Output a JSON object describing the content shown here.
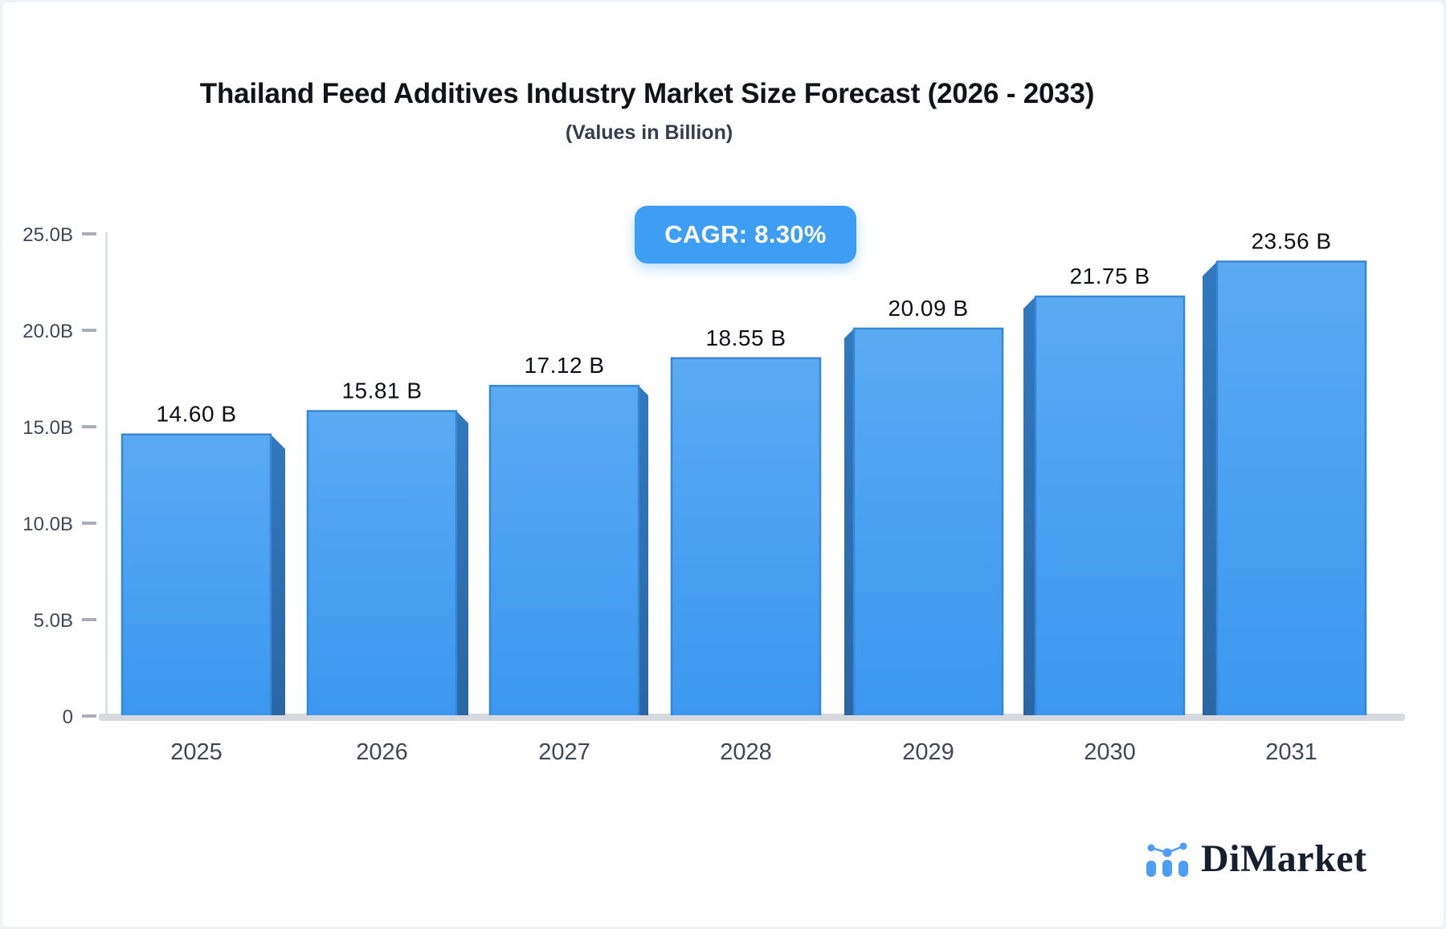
{
  "header": {
    "title": "Thailand Feed Additives Industry Market Size Forecast (2026 - 2033)",
    "subtitle": "(Values in Billion)",
    "cagr_label": "CAGR: 8.30%"
  },
  "brand": {
    "name": "DiMarket",
    "icon": "mini-bar-line-chart-icon"
  },
  "colors": {
    "bar_top": "#5BAAF2",
    "bar_bottom": "#3B97F0",
    "bar_side_top": "#3179BE",
    "bar_side_bottom": "#2A66A4",
    "bar_edge": "#3787D6",
    "badge_bg": "#3E9EF4",
    "badge_text": "#FFFFFF",
    "axis_line": "#DDE1E6",
    "baseline": "#D6DADE",
    "tick": "#A9B0BA",
    "label_dark": "#0C1117",
    "label_gray": "#3E4856",
    "brand_blue": "#4D9EF6",
    "brand_navy": "#16202E"
  },
  "chart_data": {
    "type": "bar",
    "title": "Thailand Feed Additives Industry Market Size Forecast (2026 - 2033)",
    "subtitle": "(Values in Billion)",
    "unit": "Billion",
    "cagr": "8.30%",
    "categories": [
      "2025",
      "2026",
      "2027",
      "2028",
      "2029",
      "2030",
      "2031"
    ],
    "values": [
      14.6,
      15.81,
      17.12,
      18.55,
      20.09,
      21.75,
      23.56
    ],
    "value_labels": [
      "14.60 B",
      "15.81 B",
      "17.12 B",
      "18.55 B",
      "20.09 B",
      "21.75 B",
      "23.56 B"
    ],
    "ylim": [
      0,
      25
    ],
    "y_ticks": [
      {
        "value": 0,
        "label": "0"
      },
      {
        "value": 5,
        "label": "5.0B"
      },
      {
        "value": 10,
        "label": "10.0B"
      },
      {
        "value": 15,
        "label": "15.0B"
      },
      {
        "value": 20,
        "label": "20.0B"
      },
      {
        "value": 25,
        "label": "25.0B"
      }
    ],
    "grid": false,
    "legend": false,
    "bar_style": "3d-perspective"
  }
}
